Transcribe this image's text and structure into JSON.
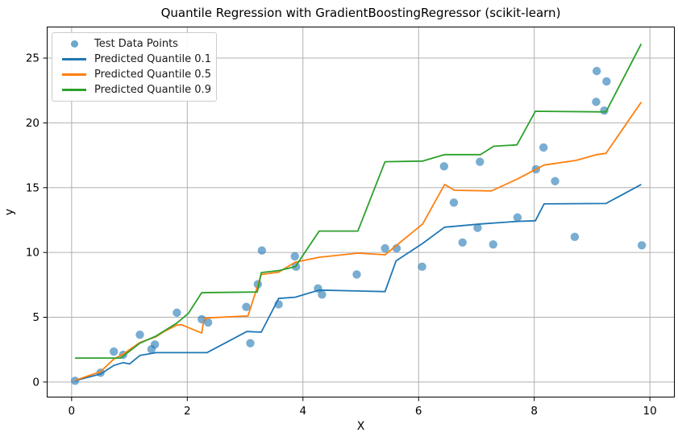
{
  "chart_data": {
    "type": "scatter-line",
    "title": "Quantile Regression with GradientBoostingRegressor (scikit-learn)",
    "xlabel": "X",
    "ylabel": "y",
    "grid": true,
    "legend_position": "upper-left",
    "x_ticks": [
      0,
      2,
      4,
      6,
      8,
      10
    ],
    "y_ticks": [
      0,
      5,
      10,
      15,
      20,
      25
    ],
    "xlim": [
      -0.43,
      10.43
    ],
    "ylim": [
      -1.19,
      27.43
    ],
    "colors": {
      "grid": "#b0b0b0",
      "spine": "#000000",
      "scatter": "#1f77b4",
      "q10": "#1f77b4",
      "q50": "#ff7f0e",
      "q90": "#2ca02c"
    },
    "scatter": {
      "name": "Test Data Points",
      "color": "#1f77b4",
      "opacity": 0.6,
      "points": [
        [
          0.06,
          0.1
        ],
        [
          0.5,
          0.72
        ],
        [
          0.73,
          2.35
        ],
        [
          0.89,
          2.1
        ],
        [
          1.18,
          3.65
        ],
        [
          1.38,
          2.53
        ],
        [
          1.44,
          2.9
        ],
        [
          1.82,
          5.35
        ],
        [
          2.25,
          4.85
        ],
        [
          2.36,
          4.6
        ],
        [
          3.02,
          5.8
        ],
        [
          3.09,
          3.0
        ],
        [
          3.22,
          7.55
        ],
        [
          3.29,
          10.15
        ],
        [
          3.58,
          6.0
        ],
        [
          3.86,
          9.7
        ],
        [
          3.88,
          8.9
        ],
        [
          4.26,
          7.22
        ],
        [
          4.33,
          6.75
        ],
        [
          4.93,
          8.3
        ],
        [
          5.42,
          10.32
        ],
        [
          5.62,
          10.32
        ],
        [
          6.06,
          8.9
        ],
        [
          6.44,
          16.65
        ],
        [
          6.61,
          13.85
        ],
        [
          6.76,
          10.77
        ],
        [
          7.02,
          11.9
        ],
        [
          7.06,
          17.0
        ],
        [
          7.29,
          10.62
        ],
        [
          7.71,
          12.7
        ],
        [
          8.03,
          16.42
        ],
        [
          8.16,
          18.1
        ],
        [
          8.36,
          15.5
        ],
        [
          8.7,
          11.2
        ],
        [
          9.07,
          21.62
        ],
        [
          9.08,
          24.0
        ],
        [
          9.21,
          20.95
        ],
        [
          9.25,
          23.2
        ],
        [
          9.86,
          10.55
        ]
      ]
    },
    "series": [
      {
        "name": "Predicted Quantile 0.1",
        "color": "#1f77b4",
        "points": [
          [
            0.06,
            0.1
          ],
          [
            0.5,
            0.62
          ],
          [
            0.73,
            1.28
          ],
          [
            0.89,
            1.5
          ],
          [
            1.0,
            1.4
          ],
          [
            1.18,
            2.05
          ],
          [
            1.46,
            2.27
          ],
          [
            2.34,
            2.27
          ],
          [
            3.03,
            3.9
          ],
          [
            3.28,
            3.85
          ],
          [
            3.58,
            6.45
          ],
          [
            3.87,
            6.55
          ],
          [
            4.28,
            7.1
          ],
          [
            5.0,
            7.02
          ],
          [
            5.42,
            6.98
          ],
          [
            5.61,
            9.35
          ],
          [
            6.07,
            10.7
          ],
          [
            6.45,
            11.95
          ],
          [
            7.07,
            12.2
          ],
          [
            7.7,
            12.4
          ],
          [
            8.02,
            12.45
          ],
          [
            8.17,
            13.75
          ],
          [
            9.24,
            13.78
          ],
          [
            9.85,
            15.25
          ]
        ]
      },
      {
        "name": "Predicted Quantile 0.5",
        "color": "#ff7f0e",
        "points": [
          [
            0.06,
            0.13
          ],
          [
            0.5,
            0.8
          ],
          [
            0.73,
            1.78
          ],
          [
            0.89,
            2.15
          ],
          [
            1.18,
            3.05
          ],
          [
            1.46,
            3.5
          ],
          [
            1.62,
            3.95
          ],
          [
            1.82,
            4.4
          ],
          [
            1.9,
            4.42
          ],
          [
            2.25,
            3.78
          ],
          [
            2.29,
            4.9
          ],
          [
            2.35,
            4.95
          ],
          [
            3.05,
            5.1
          ],
          [
            3.28,
            8.3
          ],
          [
            3.58,
            8.48
          ],
          [
            3.87,
            9.25
          ],
          [
            4.28,
            9.63
          ],
          [
            4.95,
            9.95
          ],
          [
            5.42,
            9.82
          ],
          [
            6.07,
            12.2
          ],
          [
            6.45,
            15.25
          ],
          [
            6.62,
            14.8
          ],
          [
            7.26,
            14.75
          ],
          [
            7.7,
            15.65
          ],
          [
            8.02,
            16.4
          ],
          [
            8.17,
            16.75
          ],
          [
            8.72,
            17.1
          ],
          [
            9.08,
            17.55
          ],
          [
            9.24,
            17.65
          ],
          [
            9.85,
            21.6
          ]
        ]
      },
      {
        "name": "Predicted Quantile 0.9",
        "color": "#2ca02c",
        "points": [
          [
            0.06,
            1.85
          ],
          [
            0.85,
            1.85
          ],
          [
            1.18,
            3.0
          ],
          [
            1.46,
            3.55
          ],
          [
            1.62,
            4.0
          ],
          [
            1.82,
            4.55
          ],
          [
            2.02,
            5.3
          ],
          [
            2.25,
            6.9
          ],
          [
            3.21,
            6.95
          ],
          [
            3.28,
            8.45
          ],
          [
            3.58,
            8.6
          ],
          [
            3.87,
            8.9
          ],
          [
            4.28,
            11.65
          ],
          [
            4.95,
            11.65
          ],
          [
            5.42,
            17.0
          ],
          [
            6.07,
            17.05
          ],
          [
            6.45,
            17.55
          ],
          [
            7.07,
            17.55
          ],
          [
            7.3,
            18.2
          ],
          [
            7.7,
            18.3
          ],
          [
            8.02,
            20.9
          ],
          [
            9.24,
            20.85
          ],
          [
            9.85,
            26.1
          ]
        ]
      }
    ]
  }
}
